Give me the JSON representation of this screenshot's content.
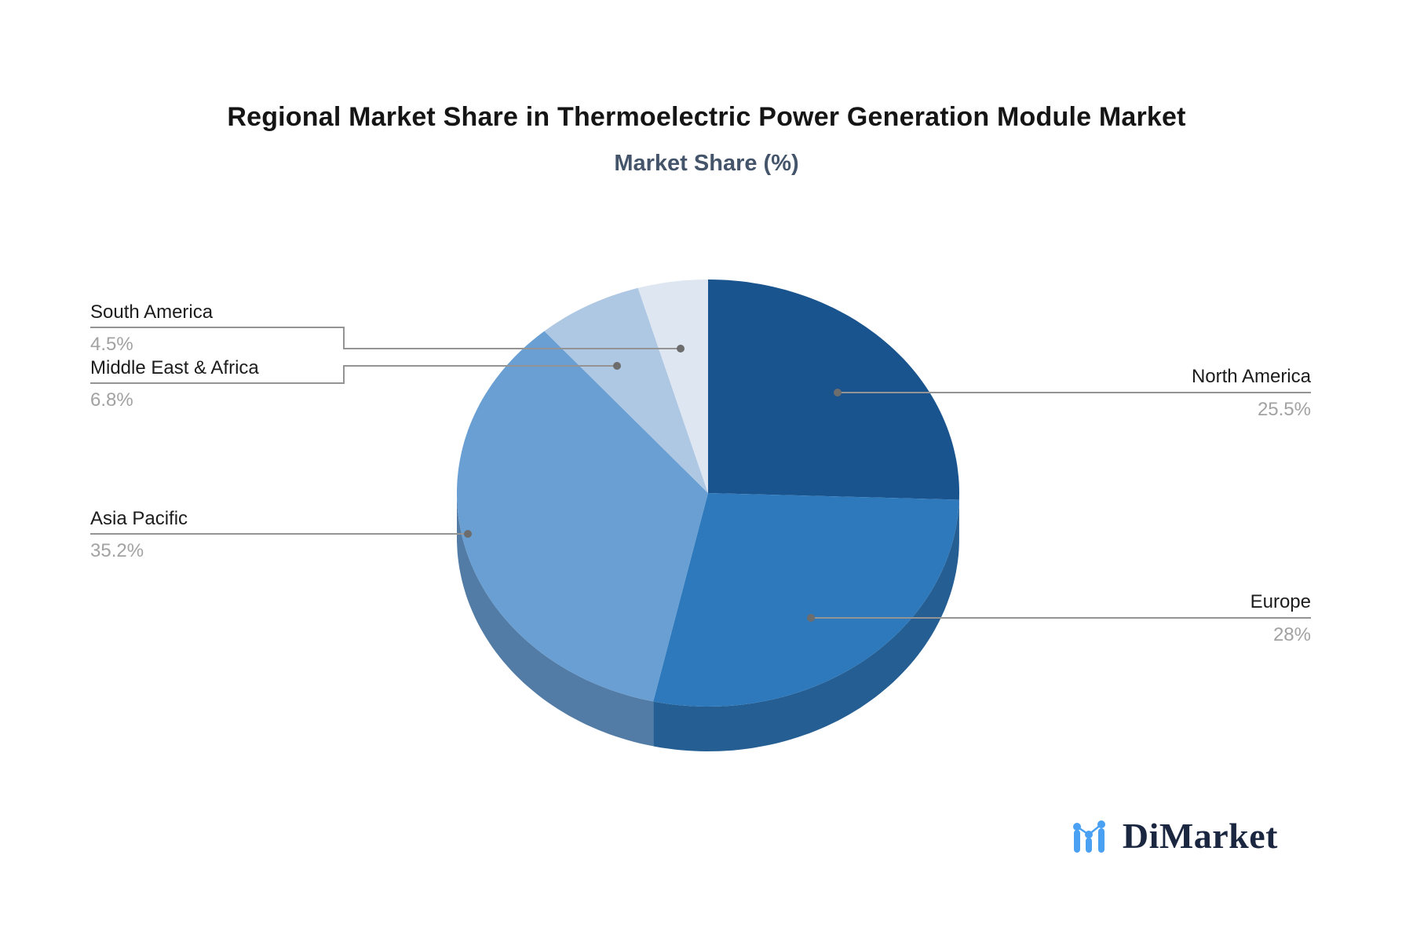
{
  "header": {
    "title": "Regional Market Share in Thermoelectric Power Generation Module Market",
    "subtitle": "Market Share (%)"
  },
  "chart_data": {
    "type": "pie",
    "title": "Regional Market Share in Thermoelectric Power Generation Module Market",
    "value_label": "Market Share (%)",
    "unit": "%",
    "style": "3d-pie, starts at 12 o'clock, clockwise",
    "legend_position": "callout-labels",
    "labels": [
      "North America",
      "Europe",
      "Asia Pacific",
      "Middle East & Africa",
      "South America"
    ],
    "values": [
      25.5,
      28,
      35.2,
      6.8,
      4.5
    ],
    "display_values": [
      "25.5%",
      "28%",
      "35.2%",
      "6.8%",
      "4.5%"
    ],
    "colors": [
      "#1a548e",
      "#2e79bc",
      "#699fd3",
      "#aec8e4",
      "#dee6f2"
    ],
    "callout_line_color": "#949494",
    "callout_dot_color": "#6d6d6d",
    "label_text_color": "#1c1c1c",
    "percent_text_color": "#a2a2a2"
  },
  "branding": {
    "logo_text": "DiMarket",
    "logo_icon": "bar-line-chart-icon",
    "logo_icon_color": "#4aa0f2",
    "logo_text_color": "#1b2740"
  }
}
